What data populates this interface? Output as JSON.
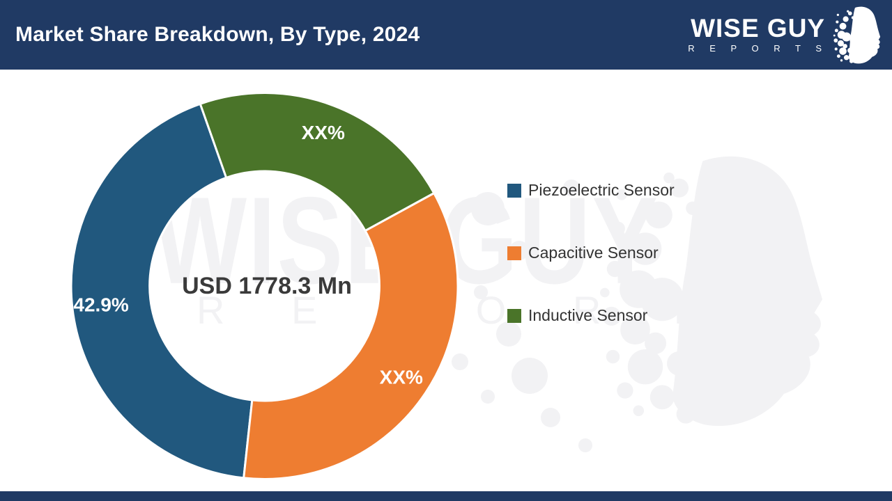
{
  "header": {
    "title": "Market Share Breakdown, By Type, 2024",
    "logo": {
      "line1": "WISE GUY",
      "line2": "R E P O R T S"
    },
    "bg_color": "#203a64",
    "text_color": "#ffffff"
  },
  "chart_data": {
    "type": "pie",
    "subtype": "donut",
    "title": "Market Share Breakdown, By Type, 2024",
    "center_label": "USD 1778.3 Mn",
    "start_angle_deg": 109.4,
    "direction": "counterclockwise",
    "hole_ratio": 0.59,
    "legend_position": "right",
    "slices": [
      {
        "name": "Piezoelectric Sensor",
        "label": "42.9%",
        "value_pct": 42.9,
        "color": "#21587e"
      },
      {
        "name": "Capacitive Sensor",
        "label": "XX%",
        "value_pct": 34.7,
        "color": "#ee7d31"
      },
      {
        "name": "Inductive Sensor",
        "label": "XX%",
        "value_pct": 22.4,
        "color": "#4a7429"
      }
    ]
  },
  "watermark": {
    "line1": "WISE GUY",
    "line2": "R E P O R T S",
    "color": "#f2f2f4"
  },
  "footer": {
    "bg_color": "#203a64"
  }
}
